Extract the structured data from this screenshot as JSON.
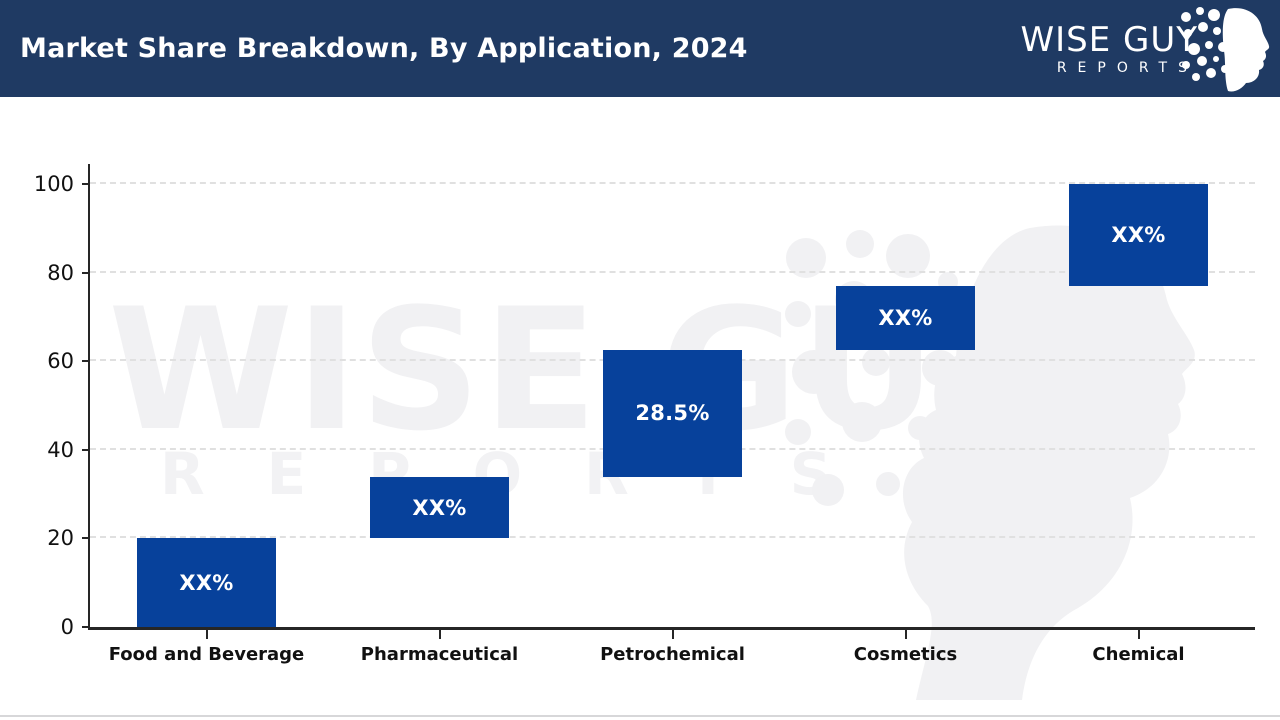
{
  "header": {
    "title": "Market Share Breakdown, By Application, 2024",
    "background": "#1f3a63",
    "text_color": "#ffffff",
    "brand": {
      "line1": "WISE GUY",
      "line2": "REPORTS"
    }
  },
  "watermark": {
    "line1": "WISE GUY",
    "line2": "REPORTS"
  },
  "chart_data": {
    "type": "bar",
    "subtype": "waterfall",
    "title": "Market Share Breakdown, By Application, 2024",
    "categories": [
      "Food and Beverage",
      "Pharmaceutical",
      "Petrochemical",
      "Cosmetics",
      "Chemical"
    ],
    "segments": [
      {
        "category": "Food and Beverage",
        "start": 0,
        "end": 20,
        "label": "XX%"
      },
      {
        "category": "Pharmaceutical",
        "start": 20,
        "end": 34,
        "label": "XX%"
      },
      {
        "category": "Petrochemical",
        "start": 34,
        "end": 62.5,
        "label": "28.5%"
      },
      {
        "category": "Cosmetics",
        "start": 62.5,
        "end": 77,
        "label": "XX%"
      },
      {
        "category": "Chemical",
        "start": 77,
        "end": 100,
        "label": "XX%"
      }
    ],
    "yticks": [
      0,
      20,
      40,
      60,
      80,
      100
    ],
    "ylim": [
      0,
      104.6
    ],
    "xlabel": "",
    "ylabel": "",
    "grid": "dashed-horizontal",
    "legend": "none",
    "bar_color": "#07419b",
    "bar_label_color": "#ffffff"
  }
}
